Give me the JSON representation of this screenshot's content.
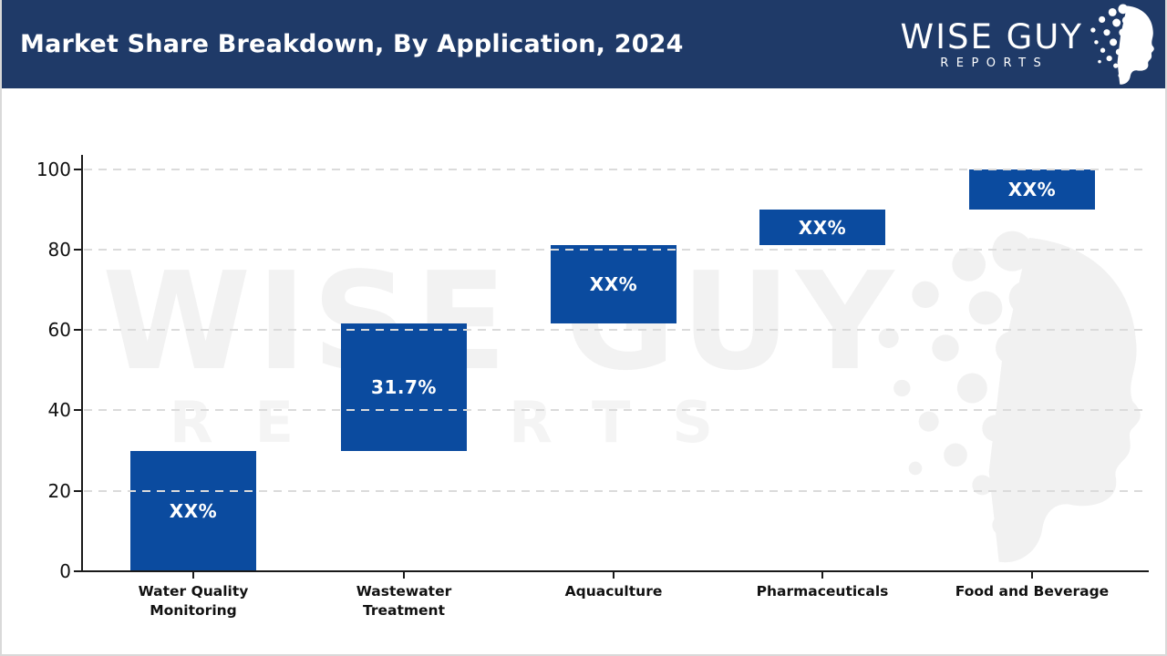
{
  "header": {
    "title": "Market Share Breakdown, By Application, 2024",
    "logo": {
      "line1": "WISE GUY",
      "line2": "REPORTS"
    }
  },
  "watermark": {
    "line1": "WISE GUY",
    "line2": "REPORTS"
  },
  "colors": {
    "header_bg": "#1f3a68",
    "bar": "#0b4b9f",
    "grid": "#dbdbdb",
    "axis": "#1a1a1a",
    "bar_label": "#ffffff"
  },
  "chart_data": {
    "type": "bar",
    "subtype": "waterfall",
    "title": "Market Share Breakdown, By Application, 2024",
    "xlabel": "",
    "ylabel": "",
    "categories": [
      "Water Quality Monitoring",
      "Wastewater Treatment",
      "Aquaculture",
      "Pharmaceuticals",
      "Food and Beverage"
    ],
    "category_lines": [
      [
        "Water Quality",
        "Monitoring"
      ],
      [
        "Wastewater",
        "Treatment"
      ],
      [
        "Aquaculture"
      ],
      [
        "Pharmaceuticals"
      ],
      [
        "Food and Beverage"
      ]
    ],
    "segments": [
      {
        "category": "Water Quality Monitoring",
        "start": 0,
        "end": 30,
        "label": "XX%"
      },
      {
        "category": "Wastewater Treatment",
        "start": 30,
        "end": 61.7,
        "label": "31.7%"
      },
      {
        "category": "Aquaculture",
        "start": 61.7,
        "end": 81,
        "label": "XX%"
      },
      {
        "category": "Pharmaceuticals",
        "start": 81,
        "end": 90,
        "label": "XX%"
      },
      {
        "category": "Food and Beverage",
        "start": 90,
        "end": 100,
        "label": "XX%"
      }
    ],
    "yticks": [
      0,
      20,
      40,
      60,
      80,
      100
    ],
    "ylim": [
      0,
      103.5
    ],
    "grid": "horizontal dashed, drawn above bars",
    "legend": "none"
  }
}
